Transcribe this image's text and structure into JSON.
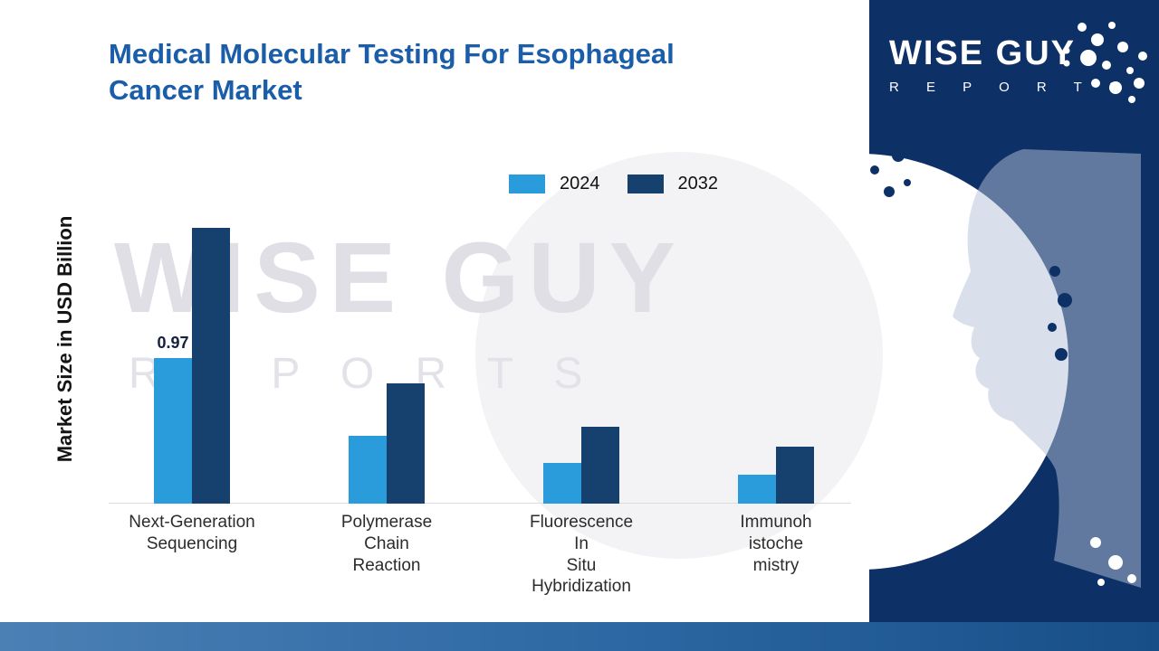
{
  "page": {
    "title": "Medical Molecular Testing For Esophageal Cancer Market"
  },
  "legend": {
    "items": [
      {
        "label": "2024",
        "color": "#2b9cdb"
      },
      {
        "label": "2032",
        "color": "#16406e"
      }
    ]
  },
  "watermark": {
    "line1": "WISE GUY",
    "line2": "R E P O R T S"
  },
  "logo": {
    "line1": "WISE GUY",
    "line2": "R E P O R T S"
  },
  "chart_data": {
    "type": "bar",
    "title": "Medical Molecular Testing For Esophageal Cancer Market",
    "xlabel": "",
    "ylabel": "Market Size in USD Billion",
    "categories": [
      "Next-Generation Sequencing",
      "Polymerase Chain Reaction",
      "Fluorescence In Situ Hybridization",
      "Immunohistochemistry"
    ],
    "category_label_lines": [
      [
        "Next-Generation",
        "Sequencing"
      ],
      [
        "Polymerase",
        "Chain",
        "Reaction"
      ],
      [
        "Fluorescence",
        "In",
        "Situ",
        "Hybridization"
      ],
      [
        "Immunoh",
        "istoche",
        "mistry"
      ]
    ],
    "series": [
      {
        "name": "2024",
        "color": "#2b9cdb",
        "values": [
          0.97,
          0.45,
          0.27,
          0.19
        ]
      },
      {
        "name": "2032",
        "color": "#16406e",
        "values": [
          1.84,
          0.8,
          0.51,
          0.38
        ]
      }
    ],
    "value_labels": [
      {
        "category_index": 0,
        "series_index": 0,
        "text": "0.97"
      }
    ],
    "ylim": [
      0,
      2.0
    ],
    "grid": false,
    "legend_position": "top-center-right"
  },
  "colors": {
    "title": "#1a5da9",
    "panel": "#0d3166",
    "bar_2024": "#2b9cdb",
    "bar_2032": "#16406e"
  }
}
